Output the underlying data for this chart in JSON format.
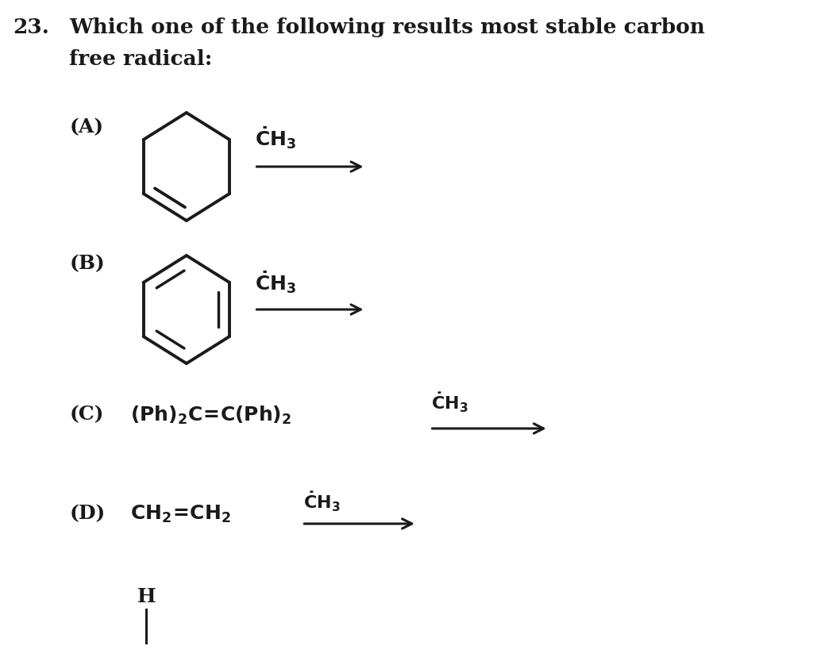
{
  "title_number": "23.",
  "title_text_line1": "Which one of the following results most stable carbon",
  "title_text_line2": "free radical:",
  "background_color": "#ffffff",
  "text_color": "#1a1a1a",
  "font_size_title": 19,
  "font_size_options": 18,
  "font_size_ch3": 16,
  "option_A_label": "(A)",
  "option_B_label": "(B)",
  "option_C_label": "(C)",
  "option_D_label": "(D)",
  "footer_text": "H"
}
